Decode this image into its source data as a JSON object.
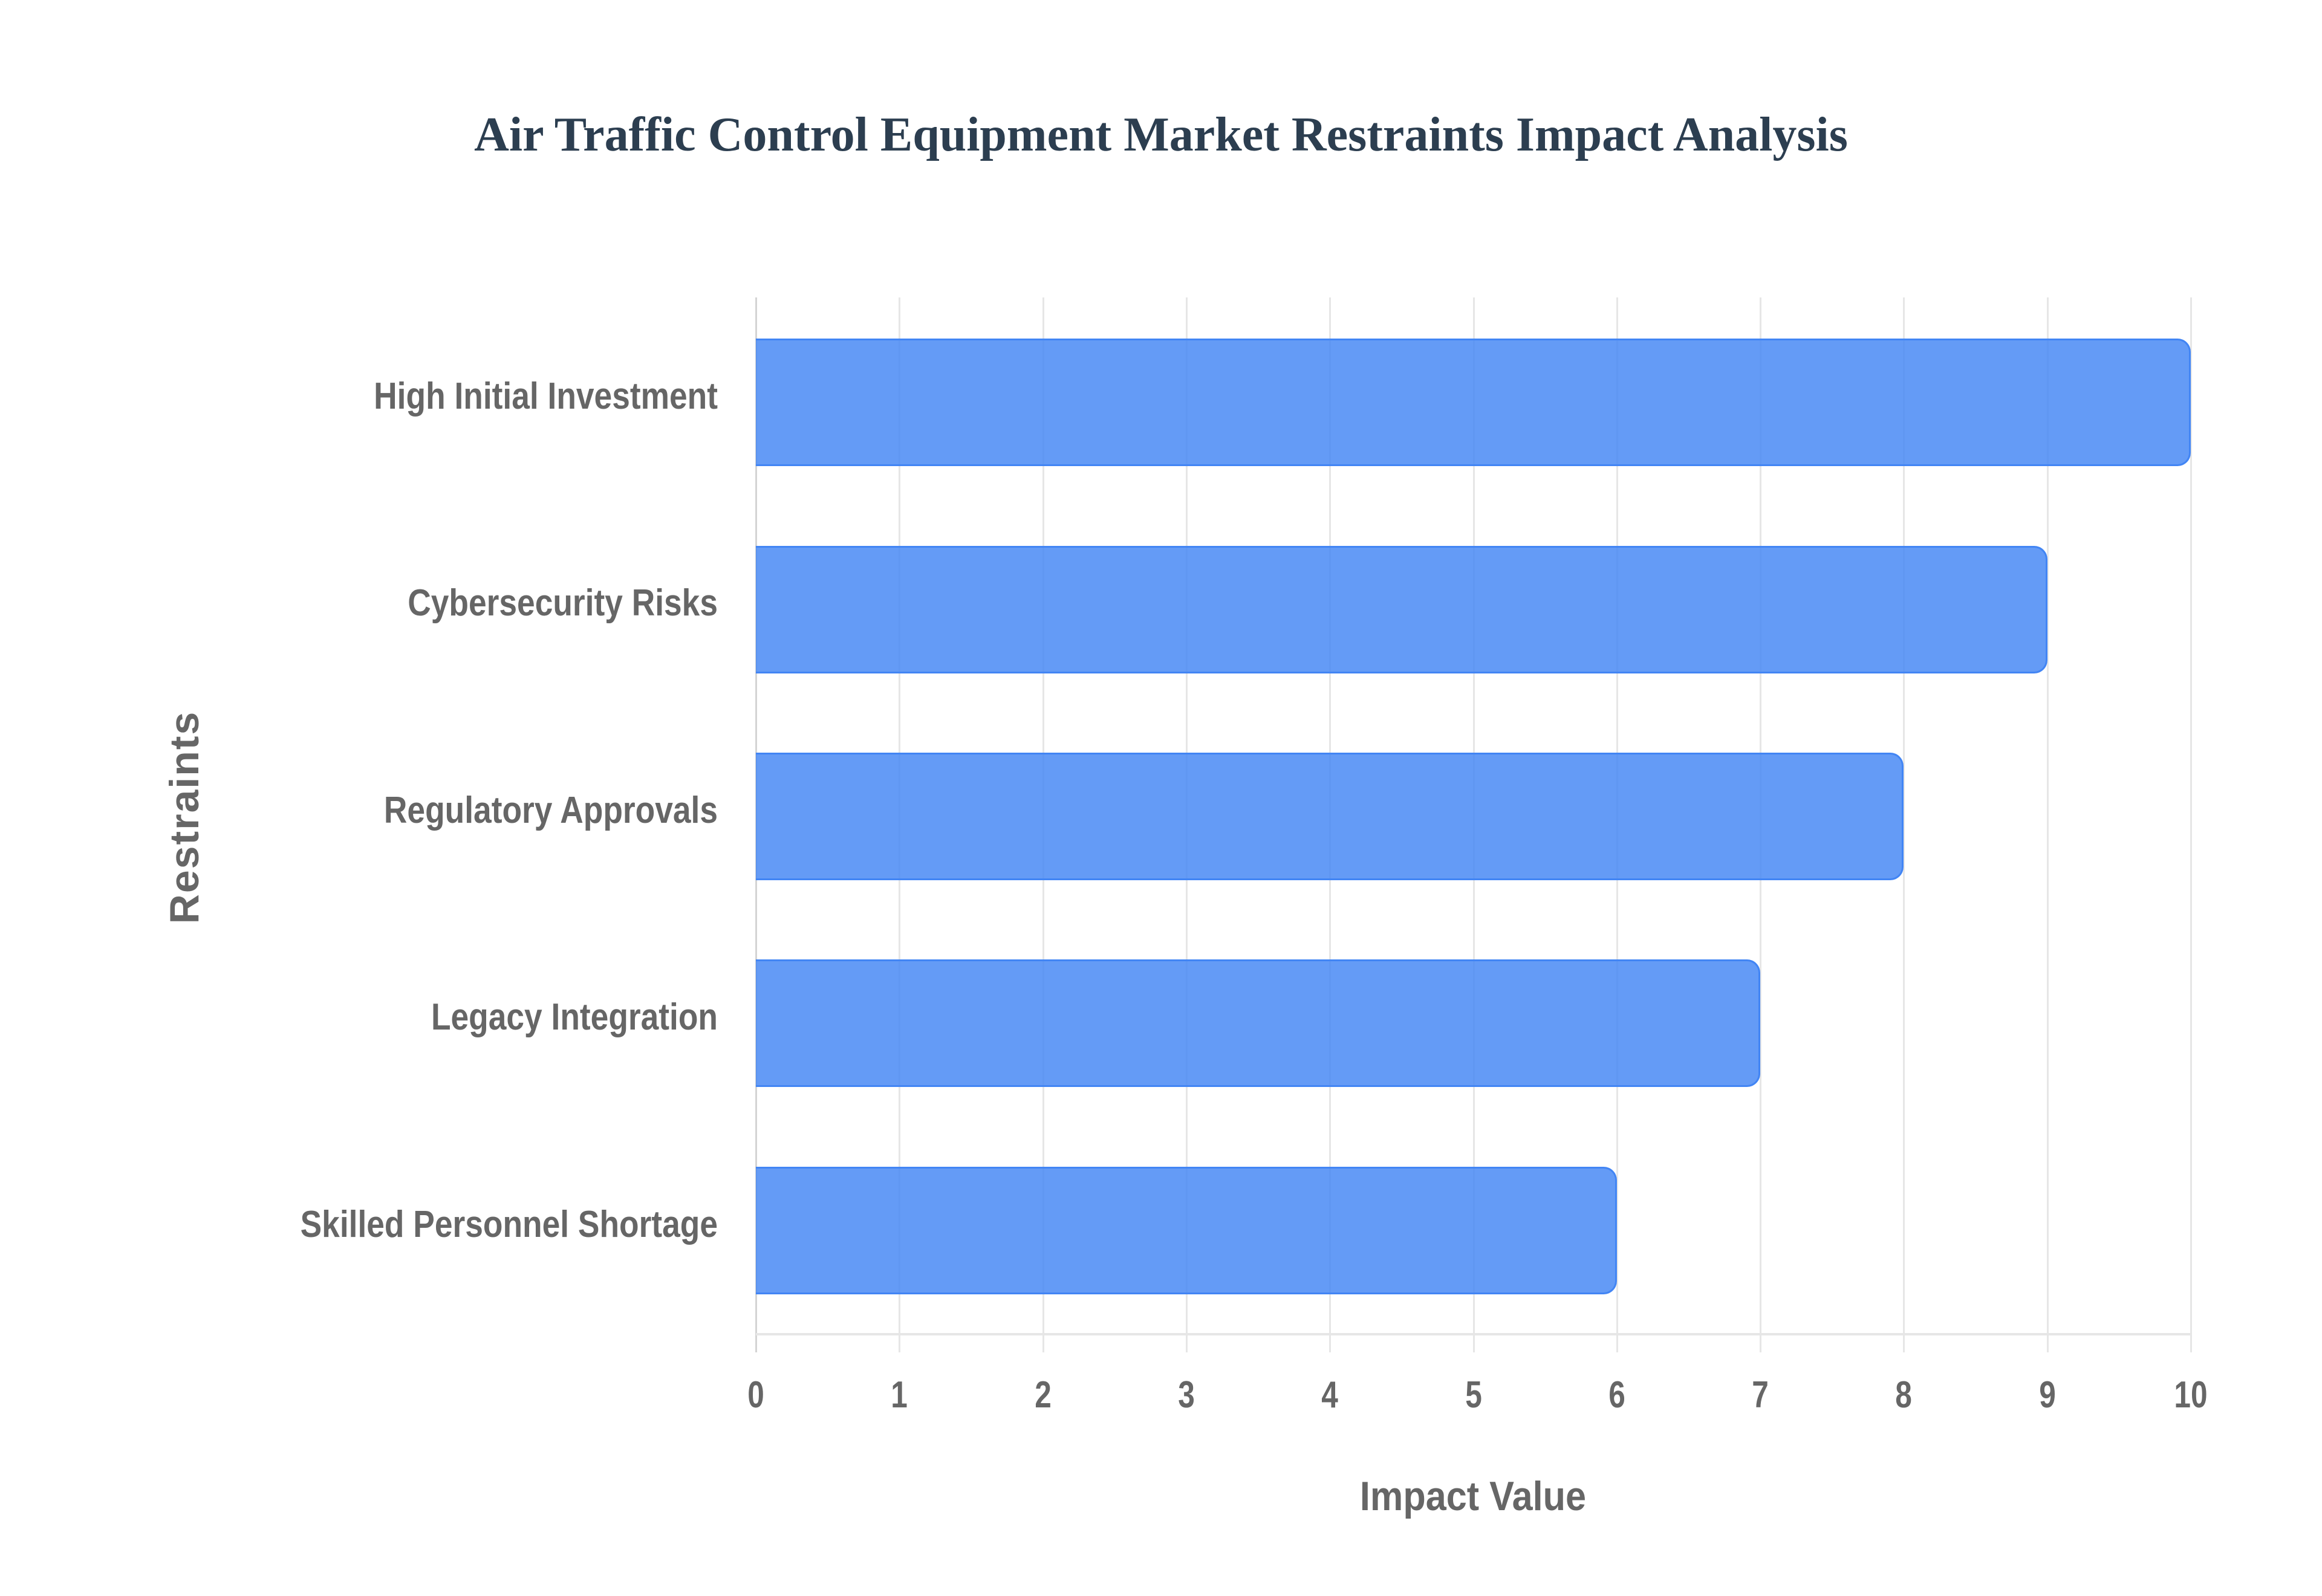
{
  "header": {
    "title": "Air Traffic Control Equipment Market Restraints Impact Analysis"
  },
  "axes": {
    "x_title": "Impact Value",
    "y_title": "Restraints",
    "x_ticks": [
      "0",
      "1",
      "2",
      "3",
      "4",
      "5",
      "6",
      "7",
      "8",
      "9",
      "10"
    ]
  },
  "colors": {
    "bar_fill": "#6199f5",
    "bar_border": "#4285f4",
    "title": "#2c3e50",
    "axis_text": "#666666",
    "grid": "#e6e6e6"
  },
  "chart_data": {
    "type": "bar",
    "orientation": "horizontal",
    "title": "Air Traffic Control Equipment Market Restraints Impact Analysis",
    "xlabel": "Impact Value",
    "ylabel": "Restraints",
    "categories": [
      "High Initial Investment",
      "Cybersecurity Risks",
      "Regulatory Approvals",
      "Legacy Integration",
      "Skilled Personnel Shortage"
    ],
    "values": [
      10,
      9,
      8,
      7,
      6
    ],
    "xlim": [
      0,
      10
    ],
    "xticks": [
      0,
      1,
      2,
      3,
      4,
      5,
      6,
      7,
      8,
      9,
      10
    ],
    "grid": true,
    "legend": null
  }
}
